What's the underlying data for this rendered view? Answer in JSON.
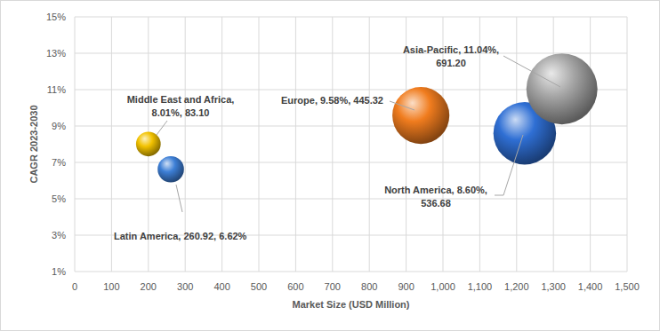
{
  "chart_data": {
    "type": "bubble",
    "x_label": "Market Size (USD Million)",
    "y_label": "CAGR 2023-2030",
    "xlim": [
      0,
      1500
    ],
    "ylim": [
      1,
      15
    ],
    "xticks": [
      0,
      100,
      200,
      300,
      400,
      500,
      600,
      700,
      800,
      900,
      {
        "value": 1000,
        "label": "1,000"
      },
      {
        "value": 1100,
        "label": "1,100"
      },
      {
        "value": 1200,
        "label": "1,200"
      },
      {
        "value": 1300,
        "label": "1,300"
      },
      {
        "value": 1400,
        "label": "1,400"
      },
      {
        "value": 1500,
        "label": "1,500"
      }
    ],
    "yticks": [
      {
        "value": 1,
        "label": "1%"
      },
      {
        "value": 3,
        "label": "3%"
      },
      {
        "value": 5,
        "label": "5%"
      },
      {
        "value": 7,
        "label": "7%"
      },
      {
        "value": 9,
        "label": "9%"
      },
      {
        "value": 11,
        "label": "11%"
      },
      {
        "value": 13,
        "label": "13%"
      },
      {
        "value": 15,
        "label": "15%"
      }
    ],
    "grid": true,
    "data_labels": true,
    "series": [
      {
        "name": "Middle East and Africa",
        "color": "#f2c200",
        "x": [
          200
        ],
        "values": [
          8.01
        ],
        "sizes": [
          83.1
        ],
        "value_labels": [
          "Middle East and Africa,\n8.01%, 83.10"
        ]
      },
      {
        "name": "Latin America",
        "color": "#3d7fd6",
        "x": [
          260.92
        ],
        "values": [
          6.62
        ],
        "sizes": [
          95
        ],
        "value_labels": [
          "Latin America, 260.92, 6.62%"
        ]
      },
      {
        "name": "Europe",
        "color": "#f07c1e",
        "x": [
          940
        ],
        "values": [
          9.58
        ],
        "sizes": [
          445.32
        ],
        "value_labels": [
          "Europe, 9.58%, 445.32"
        ]
      },
      {
        "name": "North America",
        "color": "#2f6fd4",
        "x": [
          1222
        ],
        "values": [
          8.6
        ],
        "sizes": [
          536.68
        ],
        "value_labels": [
          "North America, 8.60%,\n536.68"
        ]
      },
      {
        "name": "Asia-Pacific",
        "color": "#a6a6a6",
        "x": [
          1323
        ],
        "values": [
          11.04
        ],
        "sizes": [
          691.2
        ],
        "value_labels": [
          "Asia-Pacific, 11.04%,\n691.20"
        ]
      }
    ]
  }
}
